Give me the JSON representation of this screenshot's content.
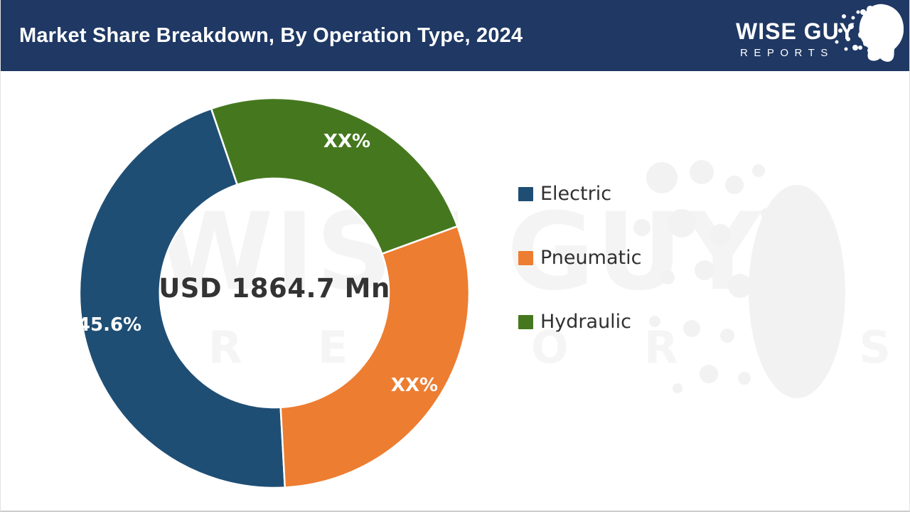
{
  "header": {
    "title": "Market Share Breakdown, By Operation Type, 2024"
  },
  "logo": {
    "name_line": "WISE GUY",
    "reports_line": "REPORTS"
  },
  "watermark": {
    "line1": "WISE GUY",
    "line2": "REPORTS"
  },
  "chart_data": {
    "type": "donut",
    "title": "Market Share Breakdown, By Operation Type, 2024",
    "center_label": "USD 1864.7 Mn",
    "start_angle_deg": 176.9,
    "segments": [
      {
        "name": "Electric",
        "value": 45.6,
        "display_label": "45.6%",
        "color": "#1F4E74"
      },
      {
        "name": "Hydraulic",
        "value": 24.7,
        "display_label": "XX%",
        "color": "#45781E"
      },
      {
        "name": "Pneumatic",
        "value": 29.7,
        "display_label": "XX%",
        "color": "#ED7D31"
      }
    ],
    "label_color": "#ffffff",
    "legend_position": "right"
  },
  "legend": {
    "items": [
      {
        "label": "Electric",
        "color": "#1F4E74"
      },
      {
        "label": "Pneumatic",
        "color": "#ED7D31"
      },
      {
        "label": "Hydraulic",
        "color": "#45781E"
      }
    ]
  }
}
